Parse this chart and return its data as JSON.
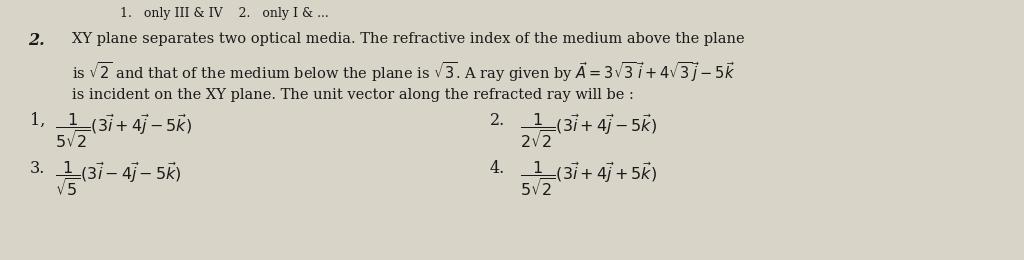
{
  "background_color": "#d8d4c8",
  "font_color": "#1a1a1a",
  "header": "1.   only III & IV     2.   only I & ...",
  "q_num": "2.",
  "line1": "XY plane separates two optical media. The refractive index of the medium above the plane",
  "line2_a": "is $\\sqrt{2}$ and that of the medium below the plane is $\\sqrt{3}$. A ray given by $\\vec{A}=3\\sqrt{3}\\,\\vec{i}+4\\sqrt{3}\\,\\vec{j}-5\\vec{k}$",
  "line3": "is incident on the XY plane. The unit vector along the refracted ray will be :",
  "opt1_num": "1,",
  "opt1_expr": "$\\dfrac{1}{5\\sqrt{2}}(3\\vec{i}+4\\vec{j}-5\\vec{k})$",
  "opt2_num": "2.",
  "opt2_expr": "$\\dfrac{1}{2\\sqrt{2}}(3\\vec{i}+4\\vec{j}-5\\vec{k})$",
  "opt3_num": "3.",
  "opt3_expr": "$\\dfrac{1}{\\sqrt{5}}(3\\vec{i}-4\\vec{j}-5\\vec{k})$",
  "opt4_num": "4.",
  "opt4_expr": "$\\dfrac{1}{5\\sqrt{2}}(3\\vec{i}+4\\vec{j}+5\\vec{k})$",
  "font_size_body": 10.5,
  "font_size_opts": 11.5
}
